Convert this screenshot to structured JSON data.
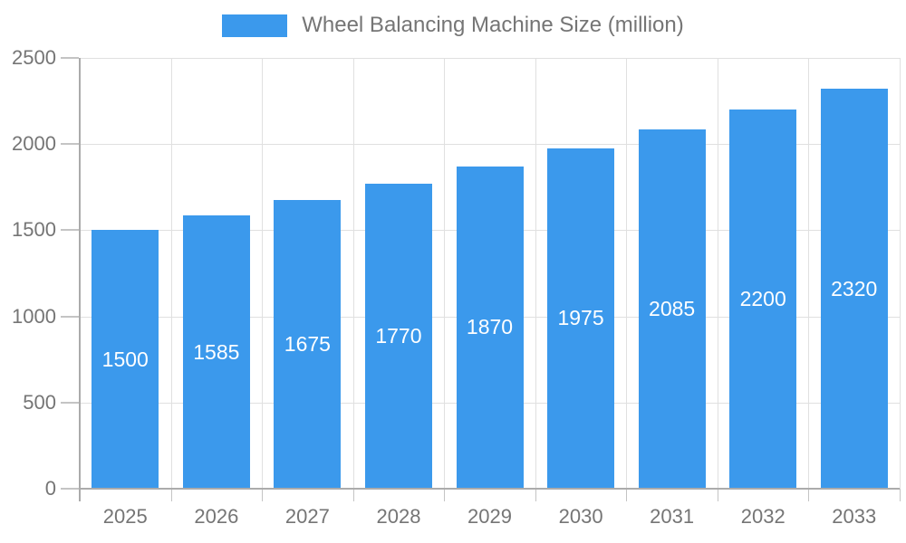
{
  "chart_data": {
    "type": "bar",
    "title": "Wheel Balancing Machine Size (million)",
    "series_name": "Wheel Balancing Machine Size (million)",
    "categories": [
      "2025",
      "2026",
      "2027",
      "2028",
      "2029",
      "2030",
      "2031",
      "2032",
      "2033"
    ],
    "values": [
      1500,
      1585,
      1675,
      1770,
      1870,
      1975,
      2085,
      2200,
      2320
    ],
    "xlabel": "",
    "ylabel": "",
    "ylim": [
      0,
      2500
    ],
    "yticks": [
      0,
      500,
      1000,
      1500,
      2000,
      2500
    ],
    "grid": true,
    "legend_position": "top-center",
    "value_label_position": "inside-center",
    "colors": {
      "bar": "#3B99EC",
      "value_label": "#FFFFFF",
      "axis_text": "#757575",
      "legend_text": "#757575",
      "gridline": "#E0E0E0",
      "axis_line": "#ABABAB",
      "tick": "#C4C4C4",
      "background": "#FFFFFF"
    }
  }
}
